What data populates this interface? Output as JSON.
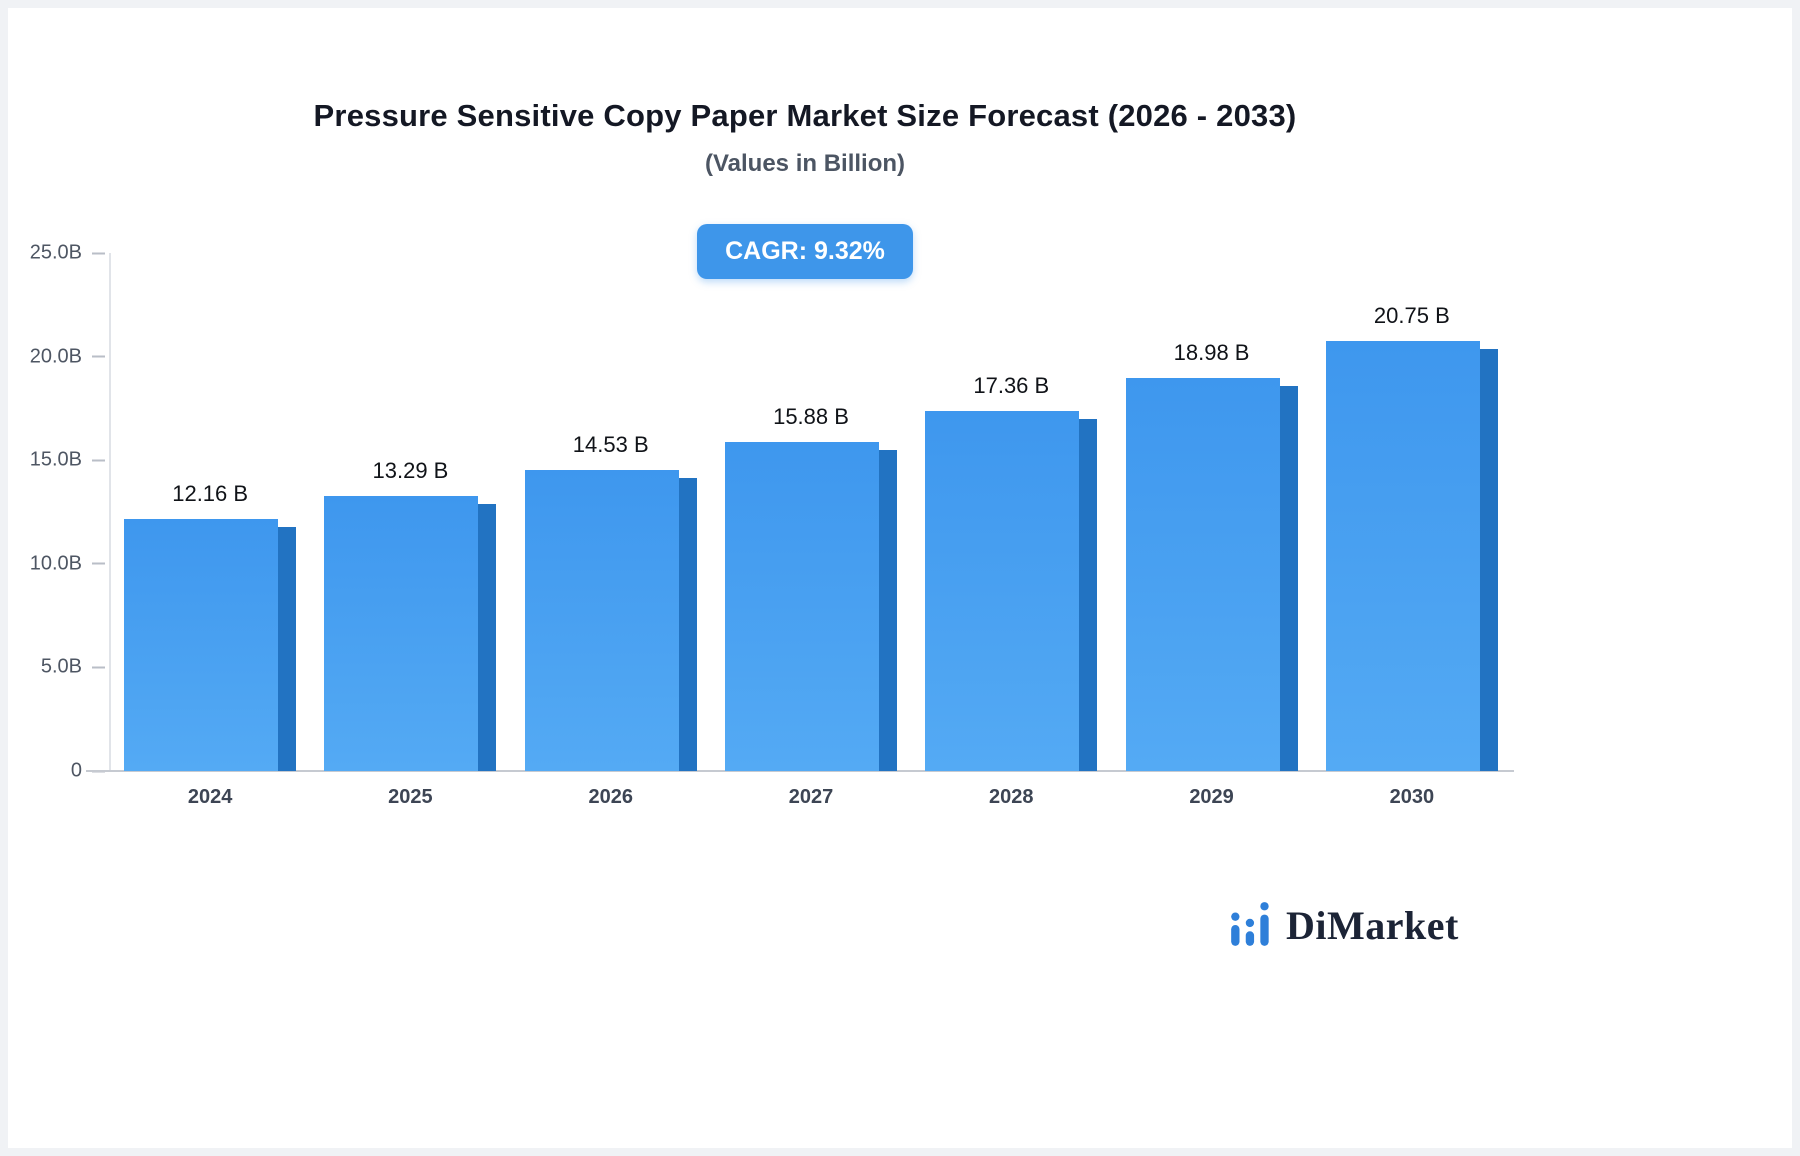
{
  "chart_data": {
    "type": "bar",
    "title": "Pressure Sensitive Copy Paper Market Size Forecast (2026 - 2033)",
    "subtitle": "(Values in Billion)",
    "badge_label": "CAGR: 9.32%",
    "categories": [
      "2024",
      "2025",
      "2026",
      "2027",
      "2028",
      "2029",
      "2030"
    ],
    "values": [
      12.16,
      13.29,
      14.53,
      15.88,
      17.36,
      18.98,
      20.75
    ],
    "value_labels": [
      "12.16 B",
      "13.29 B",
      "14.53 B",
      "15.88 B",
      "17.36 B",
      "18.98 B",
      "20.75 B"
    ],
    "xlabel": "",
    "ylabel": "",
    "ylim": [
      0,
      25
    ],
    "yticks": [
      {
        "value": 0,
        "label": "0"
      },
      {
        "value": 5,
        "label": "5.0B"
      },
      {
        "value": 10,
        "label": "10.0B"
      },
      {
        "value": 15,
        "label": "15.0B"
      },
      {
        "value": 20,
        "label": "20.0B"
      },
      {
        "value": 25,
        "label": "25.0B"
      }
    ],
    "grid": false,
    "legend": "none",
    "colors": {
      "bar_top": "#3e97ee",
      "bar_bottom": "#54aaf4",
      "bar_side": "#2273c2",
      "badge_bg": "#3e96ea",
      "badge_text": "#ffffff",
      "axis_line": "#c6cad1",
      "tick_text": "#4e5663",
      "title_text": "#141824"
    }
  },
  "logo": {
    "text": "DiMarket",
    "icon": "bar-chart-icon",
    "text_color": "#1c2436",
    "icon_color": "#2e7fd9"
  }
}
